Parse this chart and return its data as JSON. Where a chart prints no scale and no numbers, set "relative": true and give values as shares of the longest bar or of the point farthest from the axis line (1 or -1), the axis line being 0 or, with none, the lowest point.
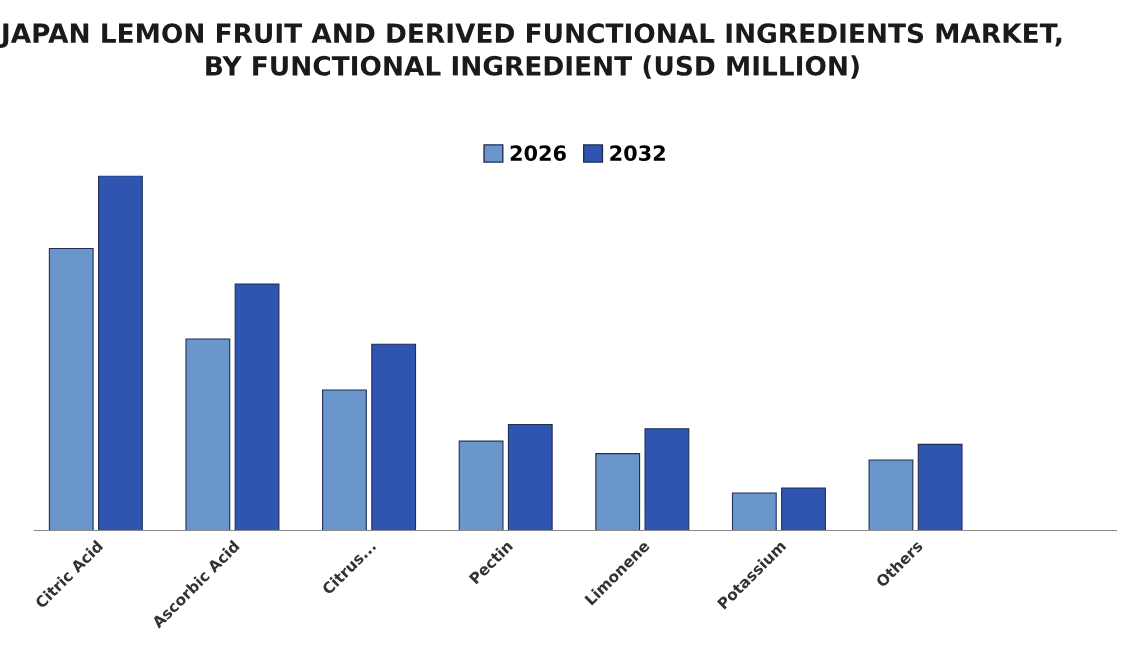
{
  "chart_data": {
    "type": "bar",
    "title": "JAPAN LEMON FRUIT AND DERIVED FUNCTIONAL INGREDIENTS MARKET, BY FUNCTIONAL INGREDIENT (USD MILLION)",
    "categories": [
      "Citric Acid",
      "Ascorbic Acid",
      "Citrus...",
      "Pectin",
      "Limonene",
      "Potassium",
      "Others"
    ],
    "relative": true,
    "legend": "top",
    "grid": false,
    "series": [
      {
        "name": "2026",
        "color": "#6a96cc",
        "values": [
          0.795,
          0.54,
          0.396,
          0.252,
          0.217,
          0.106,
          0.199
        ]
      },
      {
        "name": "2032",
        "color": "#2f55b0",
        "values": [
          1,
          0.695,
          0.525,
          0.299,
          0.287,
          0.12,
          0.243
        ]
      }
    ]
  }
}
